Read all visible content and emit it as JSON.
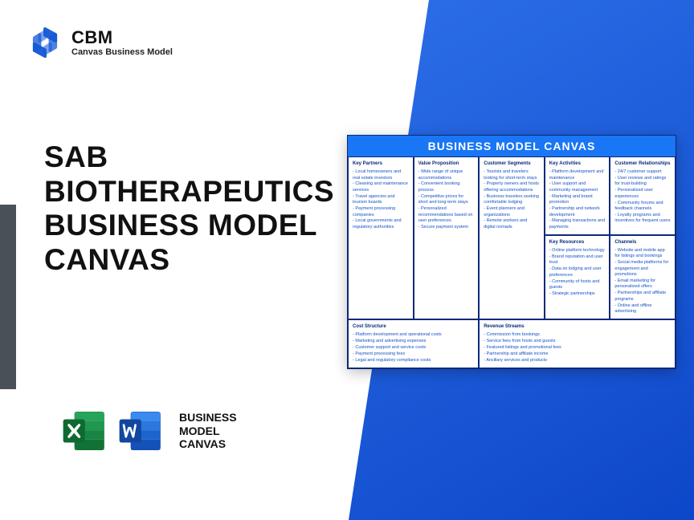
{
  "brand": {
    "title": "CBM",
    "subtitle": "Canvas Business Model",
    "logo_color": "#1458d6"
  },
  "headline": "SAB BIOTHERAPEUTICS BUSINESS MODEL CANVAS",
  "bmc_label_lines": [
    "BUSINESS",
    "MODEL",
    "CANVAS"
  ],
  "excel_icon_color": "#1a8f4a",
  "word_icon_color": "#1b5ec9",
  "canvas": {
    "title": "BUSINESS MODEL CANVAS",
    "title_bg": "#1976f5",
    "border_color": "#0a2a7a",
    "text_color": "#1551c5",
    "cells": {
      "key_partners": {
        "header": "Key Partners",
        "items": [
          "Local homeowners and real estate investors",
          "Cleaning and maintenance services",
          "Travel agencies and tourism boards",
          "Payment processing companies",
          "Local governments and regulatory authorities"
        ]
      },
      "key_activities": {
        "header": "Key Activities",
        "items": [
          "Platform development and maintenance",
          "User support and community management",
          "Marketing and brand promotion",
          "Partnership and network development",
          "Managing transactions and payments"
        ]
      },
      "key_resources": {
        "header": "Key Resources",
        "items": [
          "Online platform technology",
          "Brand reputation and user trust",
          "Data on lodging and user preferences",
          "Community of hosts and guests",
          "Strategic partnerships"
        ]
      },
      "value_proposition": {
        "header": "Value Proposition",
        "items": [
          "Wide range of unique accommodations",
          "Convenient booking process",
          "Competitive prices for short and long-term stays",
          "Personalized recommendations based on user preferences",
          "Secure payment system"
        ]
      },
      "customer_relationships": {
        "header": "Customer Relationships",
        "items": [
          "24/7 customer support",
          "User reviews and ratings for trust-building",
          "Personalized user experiences",
          "Community forums and feedback channels",
          "Loyalty programs and incentives for frequent users"
        ]
      },
      "channels": {
        "header": "Channels",
        "items": [
          "Website and mobile app for listings and bookings",
          "Social media platforms for engagement and promotions",
          "Email marketing for personalized offers",
          "Partnerships and affiliate programs",
          "Online and offline advertising"
        ]
      },
      "customer_segments": {
        "header": "Customer Segments",
        "items": [
          "Tourists and travelers looking for short-term stays",
          "Property owners and hosts offering accommodations",
          "Business travelers seeking comfortable lodging",
          "Event planners and organizations",
          "Remote workers and digital nomads"
        ]
      },
      "cost_structure": {
        "header": "Cost Structure",
        "items": [
          "Platform development and operational costs",
          "Marketing and advertising expenses",
          "Customer support and service costs",
          "Payment processing fees",
          "Legal and regulatory compliance costs"
        ]
      },
      "revenue_streams": {
        "header": "Revenue Streams",
        "items": [
          "Commission from bookings",
          "Service fees from hosts and guests",
          "Featured listings and promotional fees",
          "Partnership and affiliate income",
          "Ancillary services and products"
        ]
      }
    }
  }
}
